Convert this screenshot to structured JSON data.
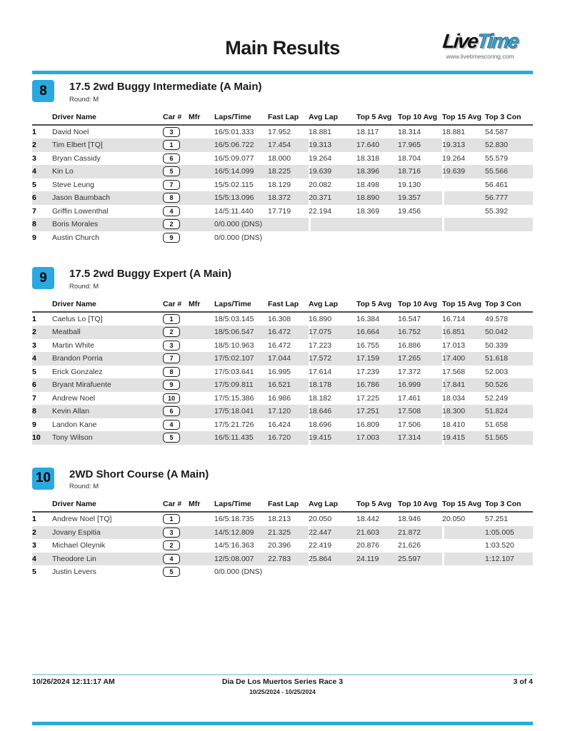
{
  "header": {
    "title": "Main Results",
    "logo": {
      "live": "Live",
      "time": "Time",
      "website": "www.livetimescoring.com"
    }
  },
  "colors": {
    "accent": "#29a9e0",
    "stripe": "#e2e2e2",
    "footer_rule": "#a6d7ef"
  },
  "columns": [
    "Driver Name",
    "Car #",
    "Mfr",
    "Laps/Time",
    "Fast Lap",
    "Avg Lap",
    "Top 5 Avg",
    "Top 10 Avg",
    "Top 15 Avg",
    "Top 3 Con"
  ],
  "sections": [
    {
      "number": "8",
      "title": "17.5 2wd Buggy Intermediate (A Main)",
      "round": "Round: M",
      "rows": [
        {
          "pos": "1",
          "driver": "David Noel",
          "car": "3",
          "mfr": "",
          "laps_time": "16/5:01.333",
          "fast_lap": "17.952",
          "avg_lap": "18.881",
          "top5": "18.117",
          "top10": "18.314",
          "top15": "18.881",
          "top3": "54.587"
        },
        {
          "pos": "2",
          "driver": "Tim Elbert [TQ]",
          "car": "1",
          "mfr": "",
          "laps_time": "16/5:06.722",
          "fast_lap": "17.454",
          "avg_lap": "19.313",
          "top5": "17.640",
          "top10": "17.965",
          "top15": "19.313",
          "top3": "52.830"
        },
        {
          "pos": "3",
          "driver": "Bryan Cassidy",
          "car": "6",
          "mfr": "",
          "laps_time": "16/5:09.077",
          "fast_lap": "18.000",
          "avg_lap": "19.264",
          "top5": "18.318",
          "top10": "18.704",
          "top15": "19.264",
          "top3": "55.579"
        },
        {
          "pos": "4",
          "driver": "Kin Lo",
          "car": "5",
          "mfr": "",
          "laps_time": "16/5:14.099",
          "fast_lap": "18.225",
          "avg_lap": "19.639",
          "top5": "18.396",
          "top10": "18.716",
          "top15": "19.639",
          "top3": "55.566"
        },
        {
          "pos": "5",
          "driver": "Steve Leung",
          "car": "7",
          "mfr": "",
          "laps_time": "15/5:02.115",
          "fast_lap": "18.129",
          "avg_lap": "20.082",
          "top5": "18.498",
          "top10": "19.130",
          "top15": "",
          "top3": "56.461"
        },
        {
          "pos": "6",
          "driver": "Jason Baumbach",
          "car": "8",
          "mfr": "",
          "laps_time": "15/5:13.096",
          "fast_lap": "18.372",
          "avg_lap": "20.371",
          "top5": "18.890",
          "top10": "19.357",
          "top15": "",
          "top3": "56.777"
        },
        {
          "pos": "7",
          "driver": "Griffin Lowenthal",
          "car": "4",
          "mfr": "",
          "laps_time": "14/5:11.440",
          "fast_lap": "17.719",
          "avg_lap": "22.194",
          "top5": "18.369",
          "top10": "19.456",
          "top15": "",
          "top3": "55.392"
        },
        {
          "pos": "8",
          "driver": "Boris Morales",
          "car": "2",
          "mfr": "",
          "laps_time": "0/0.000 (DNS)",
          "fast_lap": "",
          "avg_lap": "",
          "top5": "",
          "top10": "",
          "top15": "",
          "top3": ""
        },
        {
          "pos": "9",
          "driver": "Austin Church",
          "car": "9",
          "mfr": "",
          "laps_time": "0/0.000 (DNS)",
          "fast_lap": "",
          "avg_lap": "",
          "top5": "",
          "top10": "",
          "top15": "",
          "top3": ""
        }
      ]
    },
    {
      "number": "9",
      "title": "17.5 2wd Buggy Expert (A Main)",
      "round": "Round: M",
      "rows": [
        {
          "pos": "1",
          "driver": "Caelus Lo [TQ]",
          "car": "1",
          "mfr": "",
          "laps_time": "18/5:03.145",
          "fast_lap": "16.308",
          "avg_lap": "16.890",
          "top5": "16.384",
          "top10": "16.547",
          "top15": "16.714",
          "top3": "49.578"
        },
        {
          "pos": "2",
          "driver": "Meatball",
          "car": "2",
          "mfr": "",
          "laps_time": "18/5:06.547",
          "fast_lap": "16.472",
          "avg_lap": "17.075",
          "top5": "16.664",
          "top10": "16.752",
          "top15": "16.851",
          "top3": "50.042"
        },
        {
          "pos": "3",
          "driver": "Martin White",
          "car": "3",
          "mfr": "",
          "laps_time": "18/5:10.963",
          "fast_lap": "16.472",
          "avg_lap": "17.223",
          "top5": "16.755",
          "top10": "16.886",
          "top15": "17.013",
          "top3": "50.339"
        },
        {
          "pos": "4",
          "driver": "Brandon Porria",
          "car": "7",
          "mfr": "",
          "laps_time": "17/5:02.107",
          "fast_lap": "17.044",
          "avg_lap": "17.572",
          "top5": "17.159",
          "top10": "17.265",
          "top15": "17.400",
          "top3": "51.618"
        },
        {
          "pos": "5",
          "driver": "Erick Gonzalez",
          "car": "8",
          "mfr": "",
          "laps_time": "17/5:03.641",
          "fast_lap": "16.995",
          "avg_lap": "17.614",
          "top5": "17.239",
          "top10": "17.372",
          "top15": "17.568",
          "top3": "52.003"
        },
        {
          "pos": "6",
          "driver": "Bryant Mirafuente",
          "car": "9",
          "mfr": "",
          "laps_time": "17/5:09.811",
          "fast_lap": "16.521",
          "avg_lap": "18.178",
          "top5": "16.786",
          "top10": "16.999",
          "top15": "17.841",
          "top3": "50.526"
        },
        {
          "pos": "7",
          "driver": "Andrew Noel",
          "car": "10",
          "mfr": "",
          "laps_time": "17/5:15.386",
          "fast_lap": "16.986",
          "avg_lap": "18.182",
          "top5": "17.225",
          "top10": "17.461",
          "top15": "18.034",
          "top3": "52.249"
        },
        {
          "pos": "8",
          "driver": "Kevin Allan",
          "car": "6",
          "mfr": "",
          "laps_time": "17/5:18.041",
          "fast_lap": "17.120",
          "avg_lap": "18.646",
          "top5": "17.251",
          "top10": "17.508",
          "top15": "18.300",
          "top3": "51.824"
        },
        {
          "pos": "9",
          "driver": "Landon Kane",
          "car": "4",
          "mfr": "",
          "laps_time": "17/5:21.726",
          "fast_lap": "16.424",
          "avg_lap": "18.696",
          "top5": "16.809",
          "top10": "17.506",
          "top15": "18.410",
          "top3": "51.658"
        },
        {
          "pos": "10",
          "driver": "Tony Wilson",
          "car": "5",
          "mfr": "",
          "laps_time": "16/5:11.435",
          "fast_lap": "16.720",
          "avg_lap": "19.415",
          "top5": "17.003",
          "top10": "17.314",
          "top15": "19.415",
          "top3": "51.565"
        }
      ]
    },
    {
      "number": "10",
      "title": "2WD Short Course (A Main)",
      "round": "Round: M",
      "rows": [
        {
          "pos": "1",
          "driver": "Andrew Noel [TQ]",
          "car": "1",
          "mfr": "",
          "laps_time": "16/5:18.735",
          "fast_lap": "18.213",
          "avg_lap": "20.050",
          "top5": "18.442",
          "top10": "18.946",
          "top15": "20.050",
          "top3": "57.251"
        },
        {
          "pos": "2",
          "driver": "Jovany Espitia",
          "car": "3",
          "mfr": "",
          "laps_time": "14/5:12.809",
          "fast_lap": "21.325",
          "avg_lap": "22.447",
          "top5": "21.603",
          "top10": "21.872",
          "top15": "",
          "top3": "1:05.005"
        },
        {
          "pos": "3",
          "driver": "Michael Oleynik",
          "car": "2",
          "mfr": "",
          "laps_time": "14/5:16.363",
          "fast_lap": "20.396",
          "avg_lap": "22.419",
          "top5": "20.876",
          "top10": "21.626",
          "top15": "",
          "top3": "1:03.520"
        },
        {
          "pos": "4",
          "driver": "Theodore Lin",
          "car": "4",
          "mfr": "",
          "laps_time": "12/5:08.007",
          "fast_lap": "22.783",
          "avg_lap": "25.864",
          "top5": "24.119",
          "top10": "25.597",
          "top15": "",
          "top3": "1:12.107"
        },
        {
          "pos": "5",
          "driver": "Justin Levers",
          "car": "5",
          "mfr": "",
          "laps_time": "0/0.000 (DNS)",
          "fast_lap": "",
          "avg_lap": "",
          "top5": "",
          "top10": "",
          "top15": "",
          "top3": ""
        }
      ]
    }
  ],
  "footer": {
    "timestamp": "10/26/2024 12:11:17 AM",
    "event_title": "Dia De Los Muertos Series Race 3",
    "event_dates": "10/25/2024 - 10/25/2024",
    "page": "3 of 4"
  }
}
